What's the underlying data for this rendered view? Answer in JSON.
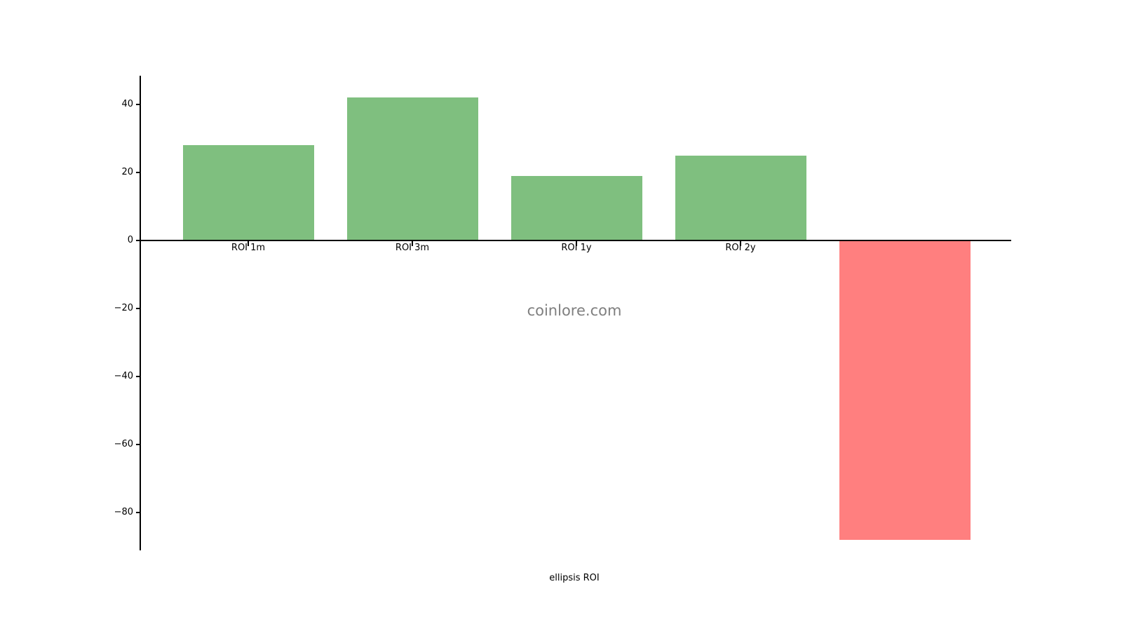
{
  "chart_data": {
    "type": "bar",
    "title": "ellipsis ROI",
    "watermark": "coinlore.com",
    "categories": [
      "ROI 1m",
      "ROI 3m",
      "ROI 1y",
      "ROI 2y",
      ""
    ],
    "values": [
      28,
      42,
      19,
      25,
      -88
    ],
    "positive_color": "#7fbf7f",
    "negative_color": "#ff7f7f",
    "axis_color": "#000000",
    "text_color": "#000000",
    "watermark_color": "#7f7f7f",
    "background_color": "#ffffff",
    "ytick_values": [
      40,
      20,
      0,
      -20,
      -40,
      -60,
      -80
    ],
    "ytick_labels": [
      "40",
      "20",
      "0",
      "−20",
      "−40",
      "−60",
      "−80"
    ],
    "ylim": [
      -91,
      48
    ],
    "xlabel": "",
    "ylabel": "",
    "grid": false,
    "legend": null
  }
}
